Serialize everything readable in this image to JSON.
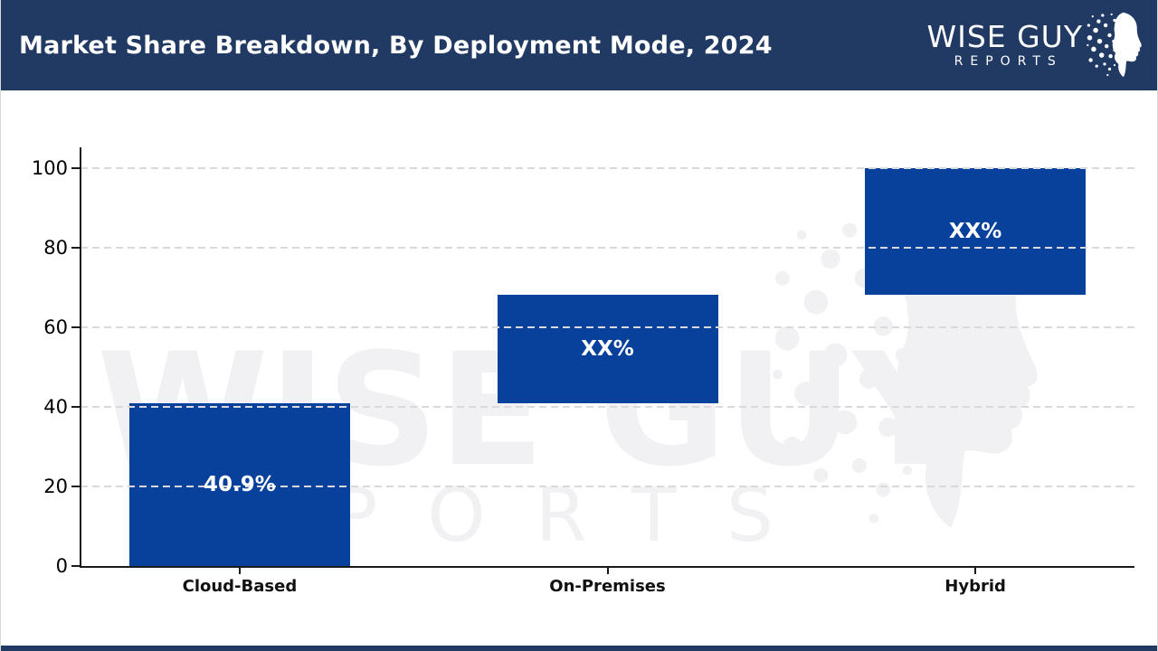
{
  "header": {
    "title": "Market Share Breakdown, By Deployment Mode, 2024",
    "logo": {
      "line1": "WISE GUY",
      "line2": "REPORTS"
    }
  },
  "watermark": {
    "line1": "WISE GUY",
    "line2": "REPORTS"
  },
  "chart_data": {
    "type": "bar",
    "variant": "stacked-waterfall",
    "title": "Market Share Breakdown, By Deployment Mode, 2024",
    "categories": [
      "Cloud-Based",
      "On-Premises",
      "Hybrid"
    ],
    "segments": [
      {
        "category": "Cloud-Based",
        "start": 0,
        "end": 40.9,
        "label": "40.9%"
      },
      {
        "category": "On-Premises",
        "start": 40.9,
        "end": 68.1,
        "label": "XX%"
      },
      {
        "category": "Hybrid",
        "start": 68.1,
        "end": 100,
        "label": "XX%"
      }
    ],
    "yticks": [
      0,
      20,
      40,
      60,
      80,
      100
    ],
    "ylim": [
      0,
      105
    ],
    "xlabel": "",
    "ylabel": "",
    "legend": "none",
    "grid": "horizontal-dashed"
  },
  "colors": {
    "header_bg": "#213a63",
    "footer_bg": "#213a63",
    "bar": "#07419b",
    "grid": "#d9d9d9",
    "axis": "#1a1a1a",
    "watermark": "#f1f1f4",
    "title_text": "#ffffff",
    "bar_label_text": "#ffffff"
  }
}
